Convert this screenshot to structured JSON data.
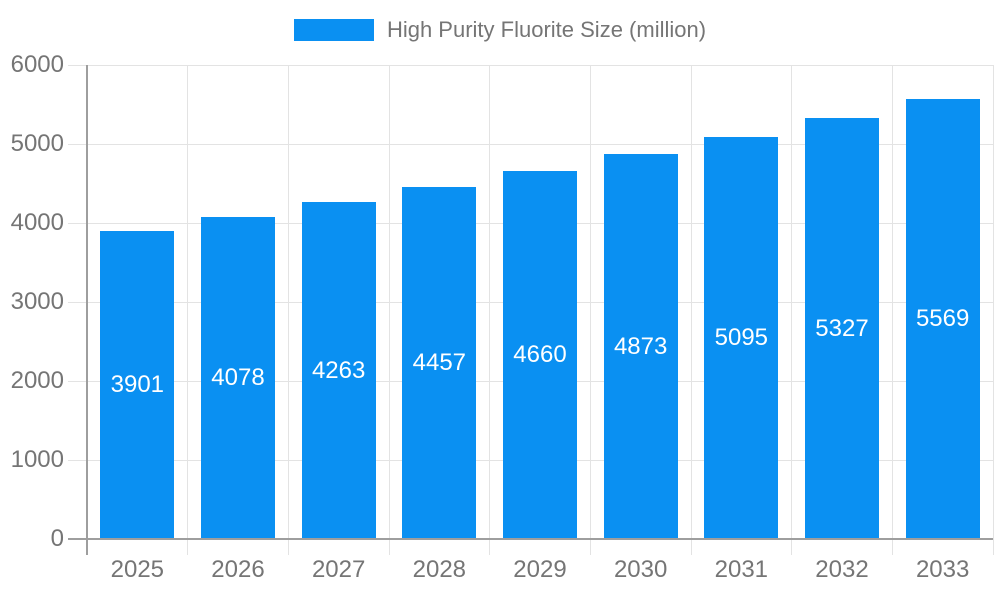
{
  "chart_data": {
    "type": "bar",
    "title": "High Purity Fluorite Size (million)",
    "categories": [
      "2025",
      "2026",
      "2027",
      "2028",
      "2029",
      "2030",
      "2031",
      "2032",
      "2033"
    ],
    "values": [
      3901,
      4078,
      4263,
      4457,
      4660,
      4873,
      5095,
      5327,
      5569
    ],
    "xlabel": "",
    "ylabel": "",
    "ylim": [
      0,
      6000
    ],
    "y_ticks": [
      0,
      1000,
      2000,
      3000,
      4000,
      5000,
      6000
    ],
    "grid": "on",
    "legend_position": "top",
    "bar_labels_inside": true,
    "colors": {
      "bar": "#0a90f2",
      "bar_label": "#ffffff",
      "axis_text": "#757575",
      "legend_text": "#757575",
      "grid_line": "#e3e3e3",
      "axis_line": "#9e9e9e",
      "background": "#ffffff"
    }
  },
  "legend": {
    "label": "High Purity Fluorite Size (million)"
  }
}
